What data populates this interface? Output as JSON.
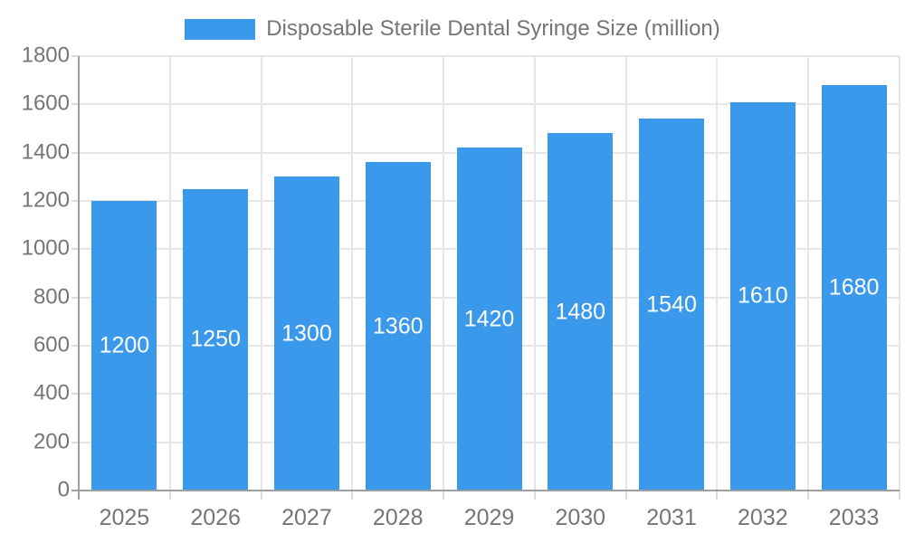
{
  "chart_data": {
    "type": "bar",
    "title": "",
    "legend": {
      "label": "Disposable Sterile Dental Syringe Size (million)",
      "position": "top"
    },
    "categories": [
      "2025",
      "2026",
      "2027",
      "2028",
      "2029",
      "2030",
      "2031",
      "2032",
      "2033"
    ],
    "series": [
      {
        "name": "Disposable Sterile Dental Syringe Size (million)",
        "values": [
          1200,
          1250,
          1300,
          1360,
          1420,
          1480,
          1540,
          1610,
          1680
        ]
      }
    ],
    "value_labels": [
      "1200",
      "1250",
      "1300",
      "1360",
      "1420",
      "1480",
      "1540",
      "1610",
      "1680"
    ],
    "xlabel": "",
    "ylabel": "",
    "ylim": [
      0,
      1800
    ],
    "ytick_step": 200,
    "yticks": [
      0,
      200,
      400,
      600,
      800,
      1000,
      1200,
      1400,
      1600,
      1800
    ],
    "grid": true,
    "colors": {
      "bar": "#3b99ec",
      "axis_text": "#757575",
      "grid_line": "#e6e6e6",
      "axis_line": "#9e9e9e",
      "tick_line": "#dcdcdc",
      "value_label": "#ffffff",
      "background": "#ffffff"
    }
  }
}
